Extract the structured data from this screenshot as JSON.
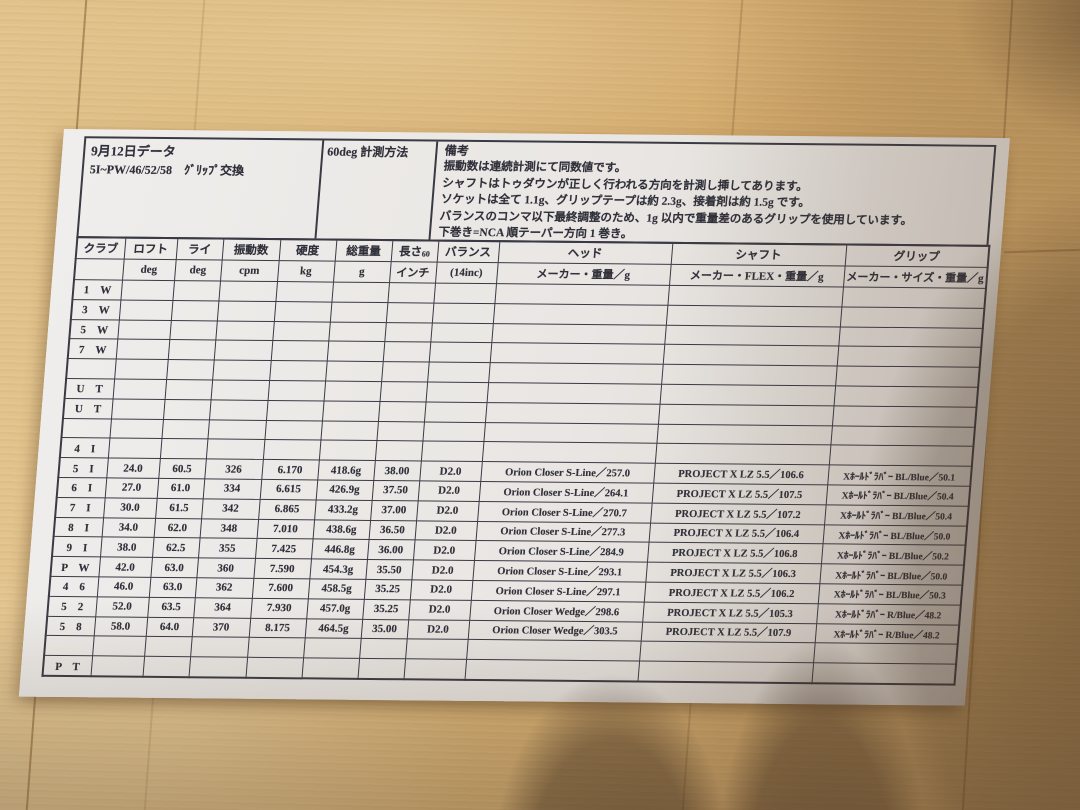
{
  "header": {
    "date_title": "9月12日データ",
    "subtitle": "5I~PW/46/52/58　ｸﾞﾘｯﾌﾟ交換",
    "method": "60deg 計測方法",
    "notes_title": "備考",
    "notes": [
      "振動数は連続計測にて同数値です。",
      "シャフトはトゥダウンが正しく行われる方向を計測し挿してあります。",
      "ソケットは全て 1.1g、グリップテープは約 2.3g、接着剤は約 1.5g です。",
      "バランスのコンマ以下最終調整のため、1g 以内で重量差のあるグリップを使用しています。",
      "下巻き=NCA 順テーパー方向 1 巻き。"
    ]
  },
  "table": {
    "columns": [
      {
        "key": "club",
        "label": "クラブ",
        "sub": "",
        "unit": ""
      },
      {
        "key": "loft",
        "label": "ロフト",
        "sub": "",
        "unit": "deg"
      },
      {
        "key": "lie",
        "label": "ライ",
        "sub": "",
        "unit": "deg"
      },
      {
        "key": "freq",
        "label": "振動数",
        "sub": "",
        "unit": "cpm"
      },
      {
        "key": "hardness",
        "label": "硬度",
        "sub": "",
        "unit": "kg"
      },
      {
        "key": "weight",
        "label": "総重量",
        "sub": "",
        "unit": "g"
      },
      {
        "key": "length",
        "label": "長さ",
        "sub": "60",
        "unit": "インチ"
      },
      {
        "key": "balance",
        "label": "バランス",
        "sub": "",
        "unit": "(14inc)"
      },
      {
        "key": "head",
        "label": "ヘッド",
        "sub": "",
        "unit": "メーカー・重量／g"
      },
      {
        "key": "shaft",
        "label": "シャフト",
        "sub": "",
        "unit": "メーカー・FLEX・重量／g"
      },
      {
        "key": "grip",
        "label": "グリップ",
        "sub": "",
        "unit": "メーカー・サイズ・重量／g"
      }
    ],
    "rows": [
      [
        "1　W",
        "",
        "",
        "",
        "",
        "",
        "",
        "",
        "",
        "",
        ""
      ],
      [
        "3　W",
        "",
        "",
        "",
        "",
        "",
        "",
        "",
        "",
        "",
        ""
      ],
      [
        "5　W",
        "",
        "",
        "",
        "",
        "",
        "",
        "",
        "",
        "",
        ""
      ],
      [
        "7　W",
        "",
        "",
        "",
        "",
        "",
        "",
        "",
        "",
        "",
        ""
      ],
      [
        "",
        "",
        "",
        "",
        "",
        "",
        "",
        "",
        "",
        "",
        ""
      ],
      [
        "U　T",
        "",
        "",
        "",
        "",
        "",
        "",
        "",
        "",
        "",
        ""
      ],
      [
        "U　T",
        "",
        "",
        "",
        "",
        "",
        "",
        "",
        "",
        "",
        ""
      ],
      [
        "",
        "",
        "",
        "",
        "",
        "",
        "",
        "",
        "",
        "",
        ""
      ],
      [
        "4　I",
        "",
        "",
        "",
        "",
        "",
        "",
        "",
        "",
        "",
        ""
      ],
      [
        "5　I",
        "24.0",
        "60.5",
        "326",
        "6.170",
        "418.6g",
        "38.00",
        "D2.0",
        "Orion Closer S-Line／257.0",
        "PROJECT X LZ 5.5／106.6",
        "Xﾎｰﾙﾄﾞﾗﾊﾞｰ BL/Blue／50.1"
      ],
      [
        "6　I",
        "27.0",
        "61.0",
        "334",
        "6.615",
        "426.9g",
        "37.50",
        "D2.0",
        "Orion Closer S-Line／264.1",
        "PROJECT X LZ 5.5／107.5",
        "Xﾎｰﾙﾄﾞﾗﾊﾞｰ BL/Blue／50.4"
      ],
      [
        "7　I",
        "30.0",
        "61.5",
        "342",
        "6.865",
        "433.2g",
        "37.00",
        "D2.0",
        "Orion Closer S-Line／270.7",
        "PROJECT X LZ 5.5／107.2",
        "Xﾎｰﾙﾄﾞﾗﾊﾞｰ BL/Blue／50.4"
      ],
      [
        "8　I",
        "34.0",
        "62.0",
        "348",
        "7.010",
        "438.6g",
        "36.50",
        "D2.0",
        "Orion Closer S-Line／277.3",
        "PROJECT X LZ 5.5／106.4",
        "Xﾎｰﾙﾄﾞﾗﾊﾞｰ BL/Blue／50.0"
      ],
      [
        "9　I",
        "38.0",
        "62.5",
        "355",
        "7.425",
        "446.8g",
        "36.00",
        "D2.0",
        "Orion Closer S-Line／284.9",
        "PROJECT X LZ 5.5／106.8",
        "Xﾎｰﾙﾄﾞﾗﾊﾞｰ BL/Blue／50.2"
      ],
      [
        "P　W",
        "42.0",
        "63.0",
        "360",
        "7.590",
        "454.3g",
        "35.50",
        "D2.0",
        "Orion Closer S-Line／293.1",
        "PROJECT X LZ 5.5／106.3",
        "Xﾎｰﾙﾄﾞﾗﾊﾞｰ BL/Blue／50.0"
      ],
      [
        "4　6",
        "46.0",
        "63.0",
        "362",
        "7.600",
        "458.5g",
        "35.25",
        "D2.0",
        "Orion Closer S-Line／297.1",
        "PROJECT X LZ 5.5／106.2",
        "Xﾎｰﾙﾄﾞﾗﾊﾞｰ BL/Blue／50.3"
      ],
      [
        "5　2",
        "52.0",
        "63.5",
        "364",
        "7.930",
        "457.0g",
        "35.25",
        "D2.0",
        "Orion Closer Wedge／298.6",
        "PROJECT X LZ 5.5／105.3",
        "Xﾎｰﾙﾄﾞﾗﾊﾞｰ R/Blue／48.2"
      ],
      [
        "5　8",
        "58.0",
        "64.0",
        "370",
        "8.175",
        "464.5g",
        "35.00",
        "D2.0",
        "Orion Closer Wedge／303.5",
        "PROJECT X LZ 5.5／107.9",
        "Xﾎｰﾙﾄﾞﾗﾊﾞｰ R/Blue／48.2"
      ],
      [
        "",
        "",
        "",
        "",
        "",
        "",
        "",
        "",
        "",
        "",
        ""
      ],
      [
        "P　T",
        "",
        "",
        "",
        "",
        "",
        "",
        "",
        "",
        "",
        ""
      ]
    ]
  },
  "colors": {
    "paper": "#e9e6e3",
    "wood": "#d6b077",
    "ink": "#30303a"
  }
}
